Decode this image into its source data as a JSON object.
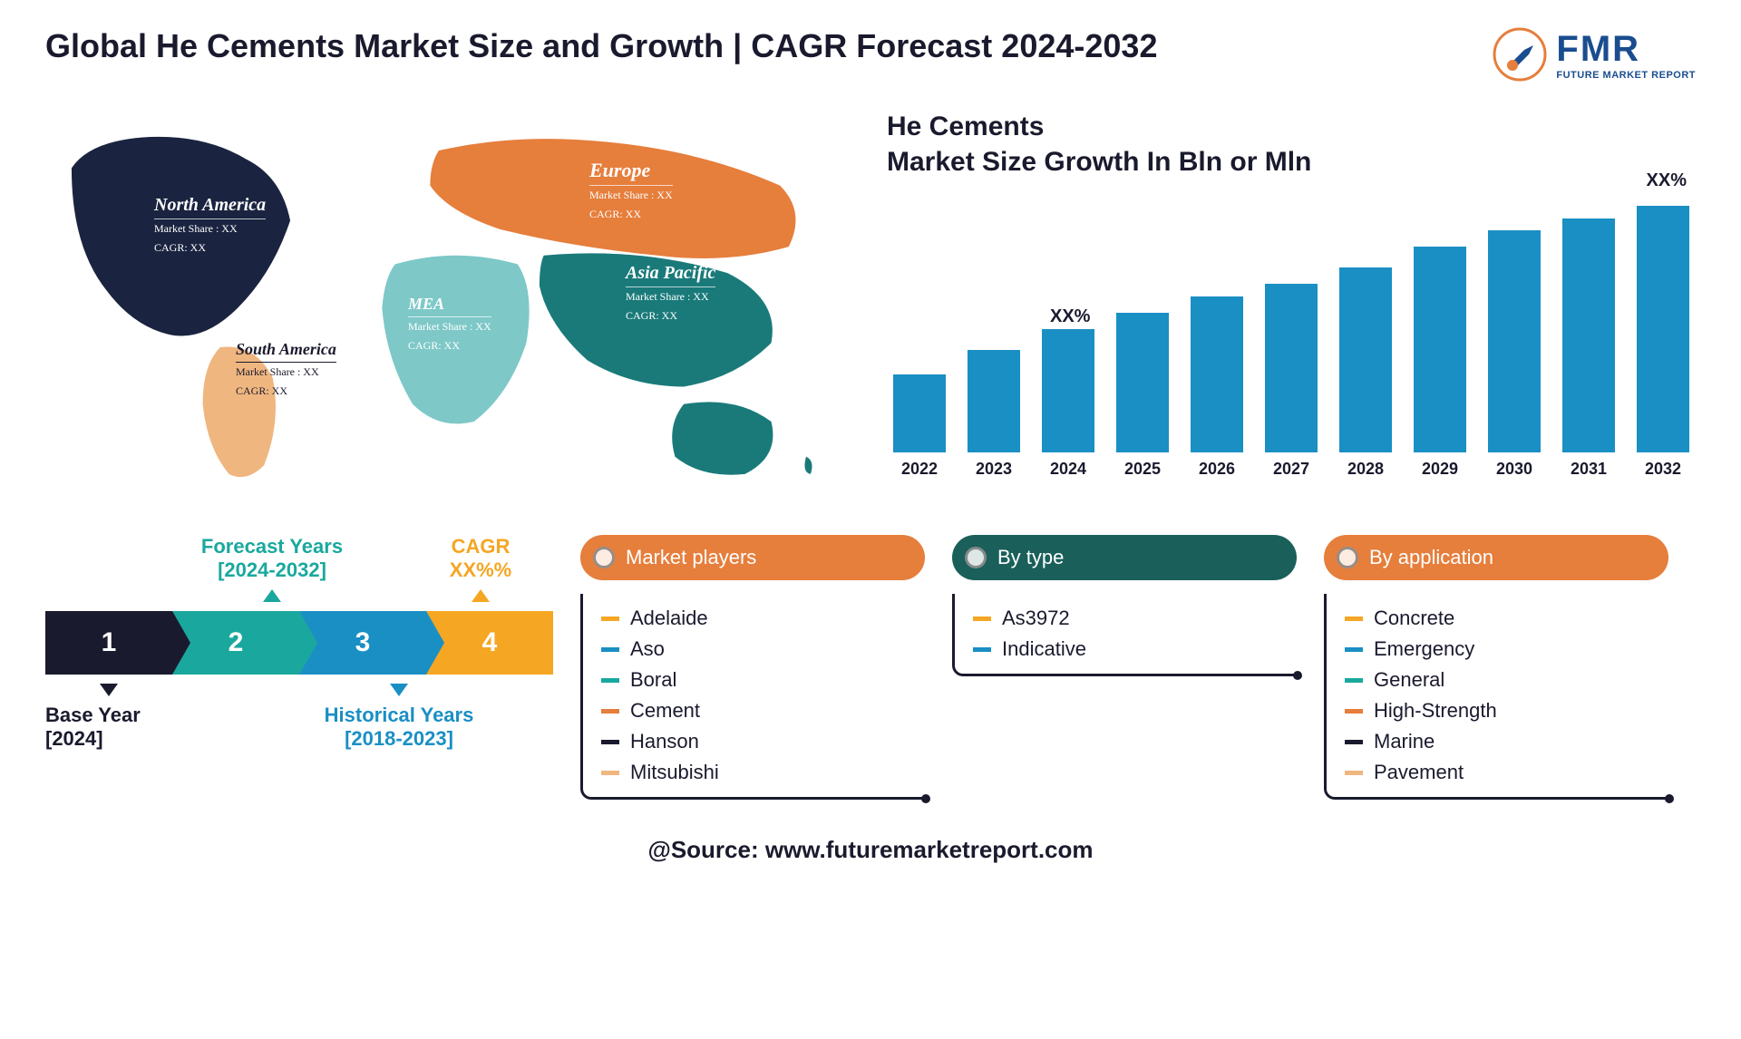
{
  "title": "Global He Cements  Market Size and Growth | CAGR Forecast 2024-2032",
  "logo": {
    "name": "FMR",
    "subtitle": "FUTURE MARKET REPORT"
  },
  "regions": {
    "north_america": {
      "title": "North America",
      "share": "Market Share : XX",
      "cagr": "CAGR: XX",
      "color": "#1a2440"
    },
    "south_america": {
      "title": "South America",
      "share": "Market Share : XX",
      "cagr": "CAGR: XX",
      "color": "#f0b680"
    },
    "europe": {
      "title": "Europe",
      "share": "Market Share : XX",
      "cagr": "CAGR: XX",
      "color": "#e67e3c"
    },
    "mea": {
      "title": "MEA",
      "share": "Market Share : XX",
      "cagr": "CAGR: XX",
      "color": "#7ec8c8"
    },
    "asia_pacific": {
      "title": "Asia Pacific",
      "share": "Market Share : XX",
      "cagr": "CAGR: XX",
      "color": "#1a7a7a"
    }
  },
  "chart": {
    "title": "He Cements\nMarket Size Growth In Bln or Mln",
    "years": [
      "2022",
      "2023",
      "2024",
      "2025",
      "2026",
      "2027",
      "2028",
      "2029",
      "2030",
      "2031",
      "2032"
    ],
    "values": [
      95,
      125,
      150,
      170,
      190,
      205,
      225,
      250,
      270,
      285,
      300
    ],
    "bar_color": "#1a8fc4",
    "annot_2024": "XX%",
    "annot_2032": "XX%",
    "ymax": 320
  },
  "timeline": {
    "forecast_label": "Forecast Years",
    "forecast_range": "[2024-2032]",
    "cagr_label": "CAGR",
    "cagr_value": "XX%%",
    "segments": [
      "1",
      "2",
      "3",
      "4"
    ],
    "base_label": "Base Year",
    "base_range": "[2024]",
    "hist_label": "Historical Years",
    "hist_range": "[2018-2023]",
    "colors": {
      "seg1": "#1a1a2e",
      "seg2": "#1aa89e",
      "seg3": "#1a8fc4",
      "seg4": "#f5a623"
    }
  },
  "panels": {
    "market_players": {
      "title": "Market players",
      "header_color": "#e67e3c",
      "items": [
        {
          "label": "Adelaide",
          "dash": "#f5a623"
        },
        {
          "label": "Aso",
          "dash": "#1a8fc4"
        },
        {
          "label": "Boral",
          "dash": "#1aa89e"
        },
        {
          "label": "Cement",
          "dash": "#e67e3c"
        },
        {
          "label": "Hanson",
          "dash": "#1a1a2e"
        },
        {
          "label": "Mitsubishi",
          "dash": "#f0b680"
        }
      ]
    },
    "by_type": {
      "title": "By type",
      "header_color": "#1a5f5a",
      "items": [
        {
          "label": "As3972",
          "dash": "#f5a623"
        },
        {
          "label": "Indicative",
          "dash": "#1a8fc4"
        }
      ]
    },
    "by_application": {
      "title": "By application",
      "header_color": "#e67e3c",
      "items": [
        {
          "label": "Concrete",
          "dash": "#f5a623"
        },
        {
          "label": "Emergency",
          "dash": "#1a8fc4"
        },
        {
          "label": "General",
          "dash": "#1aa89e"
        },
        {
          "label": "High-Strength",
          "dash": "#e67e3c"
        },
        {
          "label": "Marine",
          "dash": "#1a1a2e"
        },
        {
          "label": "Pavement",
          "dash": "#f0b680"
        }
      ]
    }
  },
  "source": "@Source: www.futuremarketreport.com"
}
